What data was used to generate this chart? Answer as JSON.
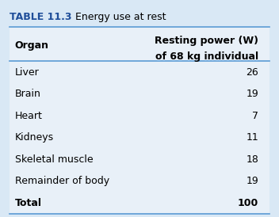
{
  "title_bold": "TABLE 11.3",
  "title_normal": "  Energy use at rest",
  "col1_header": "Organ",
  "col2_header_line1": "Resting power (W)",
  "col2_header_line2": "of 68 kg individual",
  "rows": [
    [
      "Liver",
      "26"
    ],
    [
      "Brain",
      "19"
    ],
    [
      "Heart",
      "7"
    ],
    [
      "Kidneys",
      "11"
    ],
    [
      "Skeletal muscle",
      "18"
    ],
    [
      "Remainder of body",
      "19"
    ]
  ],
  "total_row": [
    "Total",
    "100"
  ],
  "bg_color": "#d9e8f5",
  "table_bg": "#e8f0f8",
  "line_color": "#5b9bd5",
  "title_color": "#1f4e99",
  "text_color": "#000000",
  "header_fontsize": 9,
  "body_fontsize": 9,
  "title_fontsize": 9
}
